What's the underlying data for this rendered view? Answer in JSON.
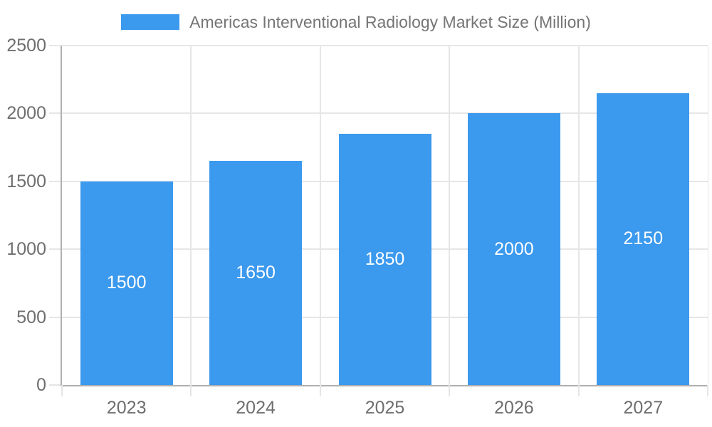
{
  "legend": {
    "label": "Americas Interventional Radiology Market Size (Million)"
  },
  "colors": {
    "bar": "#3B99EE",
    "grid": "#e6e6e6",
    "axis": "#b0b0b0",
    "tick_text": "#6e6e6e",
    "title_text": "#757575",
    "data_label": "#ffffff",
    "background": "#ffffff"
  },
  "chart_data": {
    "type": "bar",
    "title": "Americas Interventional Radiology Market Size (Million)",
    "categories": [
      "2023",
      "2024",
      "2025",
      "2026",
      "2027"
    ],
    "values": [
      1500,
      1650,
      1850,
      2000,
      2150
    ],
    "xlabel": "",
    "ylabel": "",
    "ylim": [
      0,
      2500
    ],
    "yticks": [
      0,
      500,
      1000,
      1500,
      2000,
      2500
    ],
    "grid": true,
    "legend_position": "top-center",
    "bar_color": "#3B99EE",
    "data_labels": "inside-middle-white"
  }
}
